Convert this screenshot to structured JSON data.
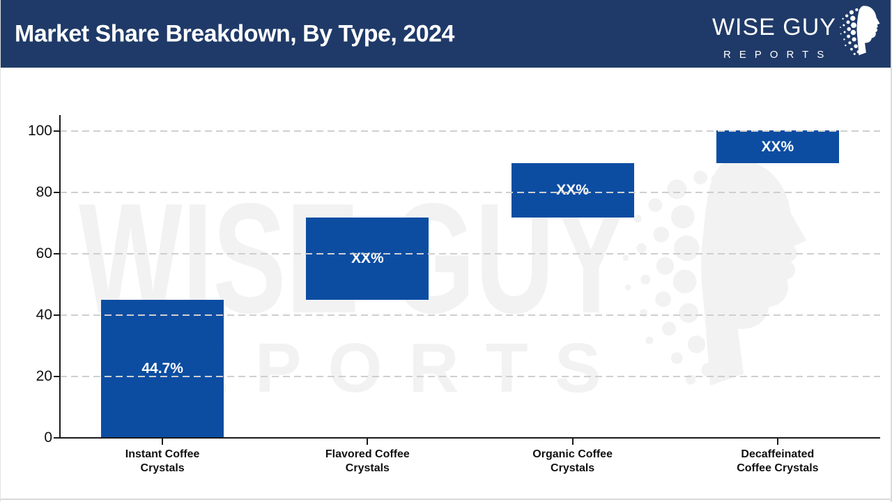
{
  "page": {
    "header": {
      "title": "Market Share Breakdown, By Type, 2024",
      "brand": {
        "name_top": "WISE GUY",
        "name_bottom": "REPORTS"
      }
    },
    "watermark": {
      "line1": "WISE GUY",
      "line2": "REPORTS"
    }
  },
  "chart_data": {
    "type": "bar",
    "variant": "floating-segment (waterfall-style market share breakdown)",
    "title": "Market Share Breakdown, By Type, 2024",
    "categories": [
      "Instant Coffee Crystals",
      "Flavored Coffee Crystals",
      "Organic Coffee Crystals",
      "Decaffeinated Coffee Crystals"
    ],
    "category_label_lines": [
      [
        "Instant Coffee",
        "Crystals"
      ],
      [
        "Flavored Coffee",
        "Crystals"
      ],
      [
        "Organic Coffee",
        "Crystals"
      ],
      [
        "Decaffeinated",
        "Coffee Crystals"
      ]
    ],
    "series": [
      {
        "name": "Market share (%)",
        "segments": [
          {
            "category": "Instant Coffee Crystals",
            "from": 0,
            "to": 44.7,
            "label": "44.7%"
          },
          {
            "category": "Flavored Coffee Crystals",
            "from": 44.7,
            "to": 71.5,
            "label": "XX%"
          },
          {
            "category": "Organic Coffee Crystals",
            "from": 71.5,
            "to": 89.3,
            "label": "XX%"
          },
          {
            "category": "Decaffeinated Coffee Crystals",
            "from": 89.3,
            "to": 100,
            "label": "XX%"
          }
        ]
      }
    ],
    "xlabel": "",
    "ylabel": "",
    "ylim": [
      0,
      100
    ],
    "yticks": [
      0,
      20,
      40,
      60,
      80,
      100
    ],
    "grid": {
      "horizontal": true,
      "style": "dashed",
      "drawn_over_bars": true
    },
    "legend": "none",
    "colors": {
      "bar": "#0c4da2",
      "bar_label": "#ffffff",
      "axis": "#1a1a1a",
      "gridline": "#cfcfcf",
      "header_bg": "#1f3a68",
      "watermark": "#f2f2f2",
      "title_text": "#ffffff"
    }
  }
}
